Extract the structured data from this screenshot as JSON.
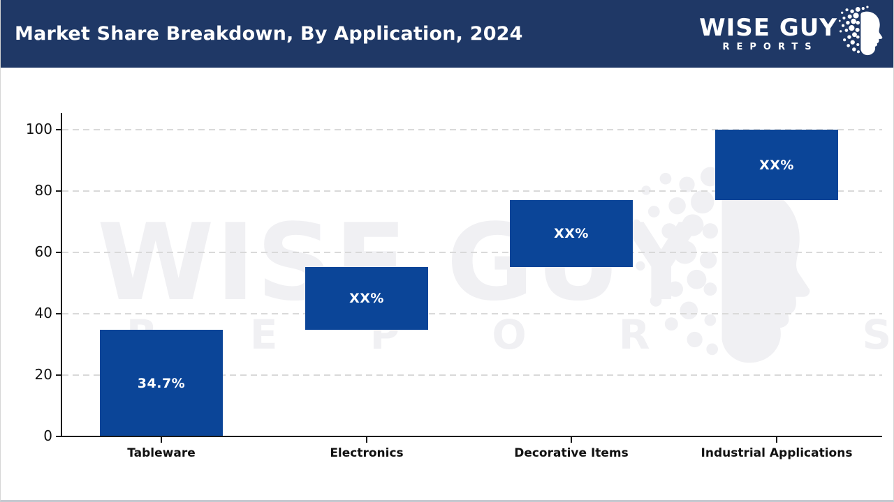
{
  "header": {
    "title": "Market Share Breakdown, By Application, 2024",
    "logo": {
      "brand_top": "WISE GUY",
      "brand_bottom": "REPORTS"
    }
  },
  "watermark": {
    "line1": "WISE GUY",
    "line2": "R E P O R T S"
  },
  "chart_data": {
    "type": "bar",
    "subtype": "waterfall",
    "title": "Market Share Breakdown, By Application, 2024",
    "categories": [
      "Tableware",
      "Electronics",
      "Decorative Items",
      "Industrial Applications"
    ],
    "segments": [
      {
        "category": "Tableware",
        "start": 0,
        "end": 34.7,
        "label": "34.7%"
      },
      {
        "category": "Electronics",
        "start": 34.7,
        "end": 55.2,
        "label": "XX%"
      },
      {
        "category": "Decorative Items",
        "start": 55.2,
        "end": 77.0,
        "label": "XX%"
      },
      {
        "category": "Industrial Applications",
        "start": 77.0,
        "end": 100.0,
        "label": "XX%"
      }
    ],
    "yticks": [
      0,
      20,
      40,
      60,
      80,
      100
    ],
    "ylim": [
      0,
      105
    ],
    "xlabel": "",
    "ylabel": "",
    "grid": "horizontal-dashed",
    "legend": "none",
    "bar_color": "#0b4598",
    "bar_label_color": "#ffffff"
  },
  "colors": {
    "header_bg": "#1f3866",
    "axis": "#1a1a1a",
    "grid": "#d9d9d9",
    "watermark": "#f0f0f3",
    "page_border": "#c4c9d0"
  }
}
